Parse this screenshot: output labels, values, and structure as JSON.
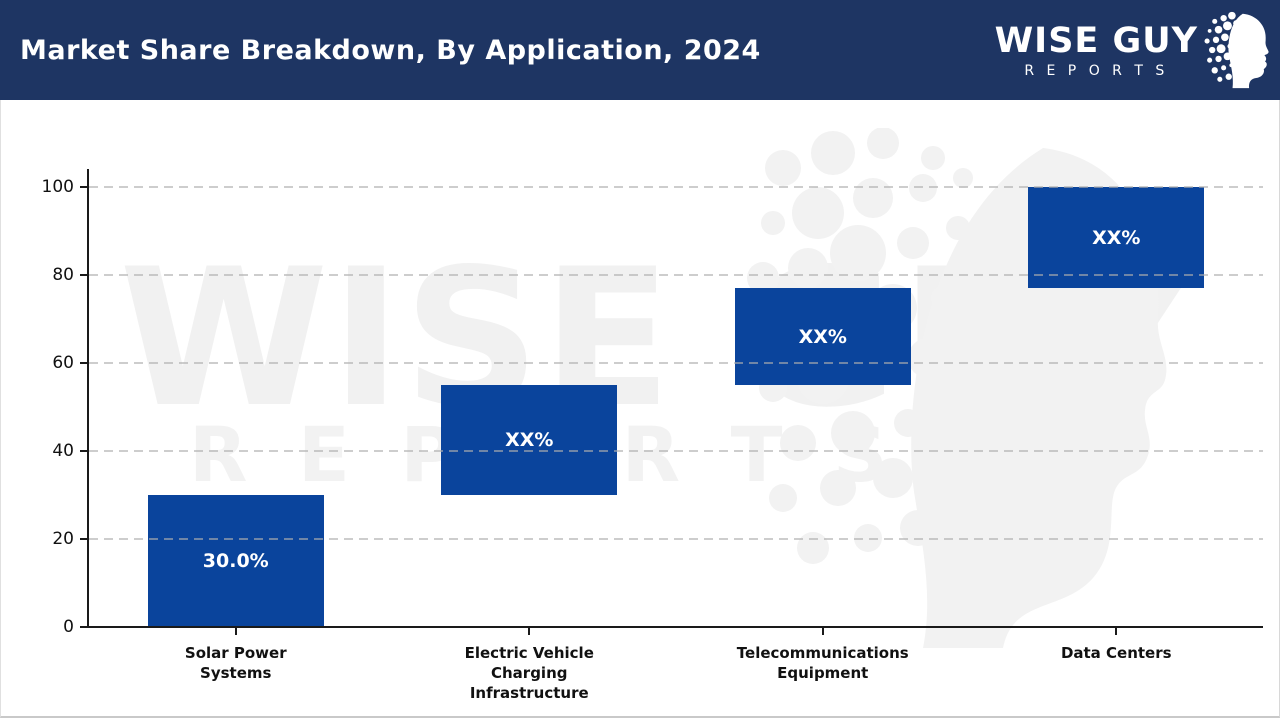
{
  "header": {
    "title": "Market Share Breakdown, By Application, 2024",
    "bg_color": "#1e3563",
    "logo": {
      "name": "WISE GUY",
      "subname": "R E P O R T S"
    }
  },
  "watermark": {
    "line1": "WISE GUY",
    "line2": "R E P O R T S"
  },
  "chart_data": {
    "type": "bar",
    "variant": "waterfall-stacked-percentage",
    "title": "Market Share Breakdown, By Application, 2024",
    "categories": [
      [
        "Solar Power",
        "Systems"
      ],
      [
        "Electric Vehicle",
        "Charging",
        "Infrastructure"
      ],
      [
        "Telecommunications",
        "Equipment"
      ],
      [
        "Data Centers"
      ]
    ],
    "series": [
      {
        "name": "Market Share (%)",
        "segments": [
          {
            "category": "Solar Power Systems",
            "start": 0,
            "end": 30,
            "label": "30.0%"
          },
          {
            "category": "Electric Vehicle Charging Infrastructure",
            "start": 30,
            "end": 55,
            "label": "XX%"
          },
          {
            "category": "Telecommunications Equipment",
            "start": 55,
            "end": 77,
            "label": "XX%"
          },
          {
            "category": "Data Centers",
            "start": 77,
            "end": 100,
            "label": "XX%"
          }
        ]
      }
    ],
    "xlabel": "",
    "ylabel": "",
    "ylim": [
      0,
      100
    ],
    "yticks": [
      0,
      20,
      40,
      60,
      80,
      100
    ],
    "grid": "horizontal-dashed",
    "legend": null,
    "bar_color": "#0a449c",
    "bar_label_color": "#ffffff",
    "grid_color": "#d9d9d9",
    "axis_color": "#1a1a1a"
  }
}
